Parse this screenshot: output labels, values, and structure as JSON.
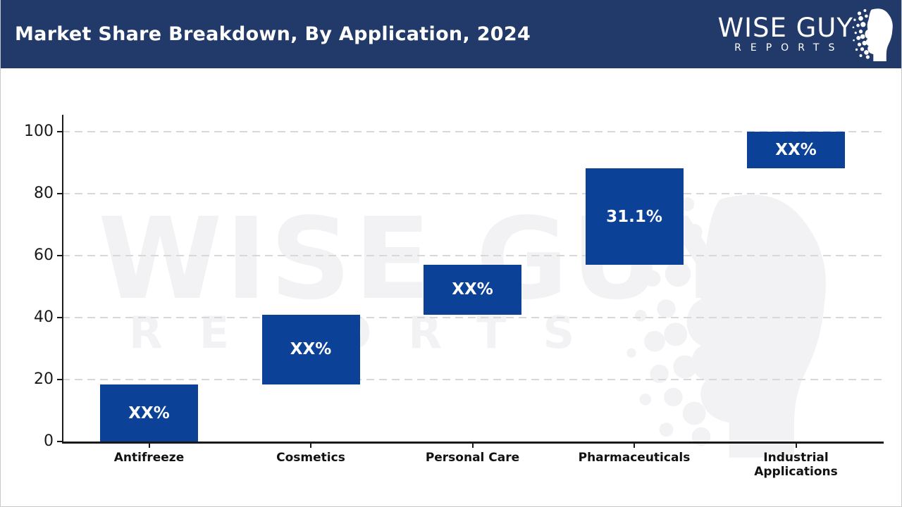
{
  "header": {
    "title": "Market Share Breakdown, By Application, 2024",
    "bg_color": "#223a69",
    "logo": {
      "line1": "WISE GUY",
      "line2": "REPORTS"
    }
  },
  "watermark": {
    "line1": "WISE GUY",
    "line2": "REPORTS",
    "color": "#f2f2f4"
  },
  "chart_data": {
    "type": "bar",
    "subtype": "waterfall",
    "title": "Market Share Breakdown, By Application, 2024",
    "xlabel": "",
    "ylabel": "",
    "ylim": [
      0,
      105
    ],
    "yticks": [
      0,
      20,
      40,
      60,
      80,
      100
    ],
    "grid": "horizontal-dashed",
    "legend": "none",
    "bar_color": "#0b4197",
    "label_color": "#ffffff",
    "categories": [
      "Antifreeze",
      "Cosmetics",
      "Personal Care",
      "Pharmaceuticals",
      "Industrial Applications"
    ],
    "segments": [
      {
        "category": "Antifreeze",
        "start": 0,
        "end": 18.4,
        "value": 18.4,
        "label": "XX%"
      },
      {
        "category": "Cosmetics",
        "start": 18.4,
        "end": 41.0,
        "value": 22.6,
        "label": "XX%"
      },
      {
        "category": "Personal Care",
        "start": 41.0,
        "end": 57.0,
        "value": 16.0,
        "label": "XX%"
      },
      {
        "category": "Pharmaceuticals",
        "start": 57.0,
        "end": 88.1,
        "value": 31.1,
        "label": "31.1%"
      },
      {
        "category": "Industrial Applications",
        "start": 88.1,
        "end": 100.0,
        "value": 11.9,
        "label": "XX%"
      }
    ]
  }
}
